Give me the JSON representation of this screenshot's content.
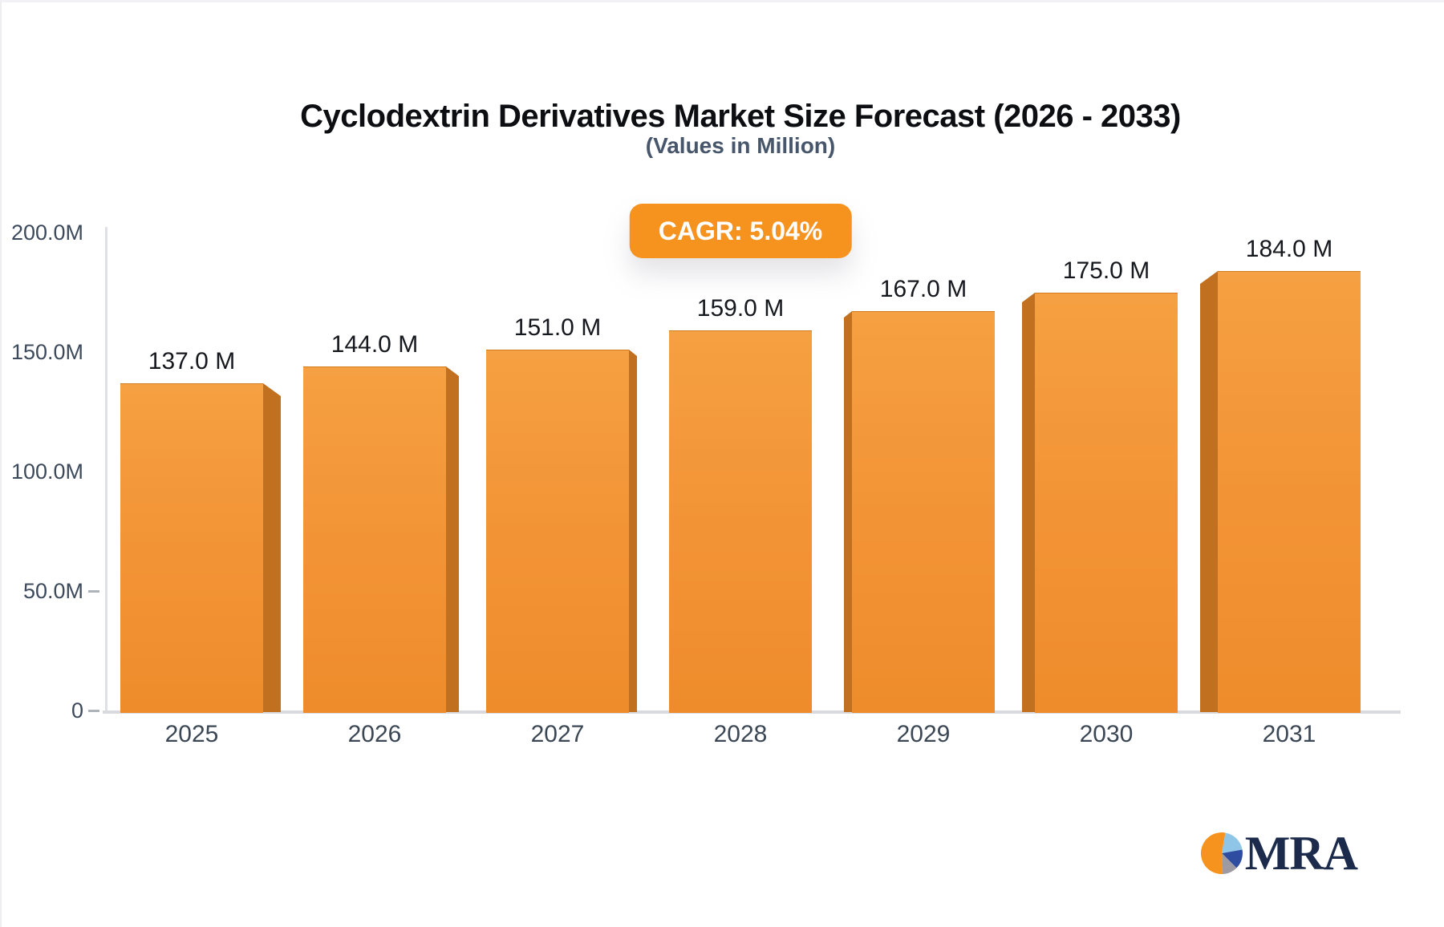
{
  "header": {
    "title": "Cyclodextrin Derivatives Market Size Forecast (2026 - 2033)",
    "subtitle": "(Values in Million)"
  },
  "badge": {
    "label": "CAGR: 5.04%",
    "bg_color": "#f6921e",
    "text_color": "#ffffff"
  },
  "chart_data": {
    "type": "bar",
    "title": "Cyclodextrin Derivatives Market Size Forecast (2026 - 2033)",
    "subtitle": "(Values in Million)",
    "categories": [
      "2025",
      "2026",
      "2027",
      "2028",
      "2029",
      "2030",
      "2031"
    ],
    "values": [
      137,
      144,
      151,
      159,
      167,
      175,
      184
    ],
    "value_labels": [
      "137.0 M",
      "144.0 M",
      "151.0 M",
      "159.0 M",
      "167.0 M",
      "175.0 M",
      "184.0 M"
    ],
    "xlabel": "",
    "ylabel": "",
    "ylim": [
      0,
      200
    ],
    "y_ticks": [
      {
        "value": 200,
        "label": "200.0M",
        "dash": false
      },
      {
        "value": 150,
        "label": "150.0M",
        "dash": false
      },
      {
        "value": 100,
        "label": "100.0M",
        "dash": false
      },
      {
        "value": 50,
        "label": "50.0M",
        "dash": true
      },
      {
        "value": 0,
        "label": "0",
        "dash": true
      }
    ],
    "grid": false,
    "legend": false,
    "style": "3d bars, perspective toward center bar",
    "bar_face_top_color": "#f5a042",
    "bar_face_bottom_color": "#ee8c2b",
    "bar_side_color": "#c0701e",
    "axis_color": "#dee0e5"
  },
  "logo": {
    "text": "MRA",
    "colors": {
      "navy": "#1c2b4b",
      "orange": "#f6921e",
      "light_blue": "#8fc6e8",
      "blue": "#2f4da0",
      "gray": "#9d9aa2"
    }
  }
}
